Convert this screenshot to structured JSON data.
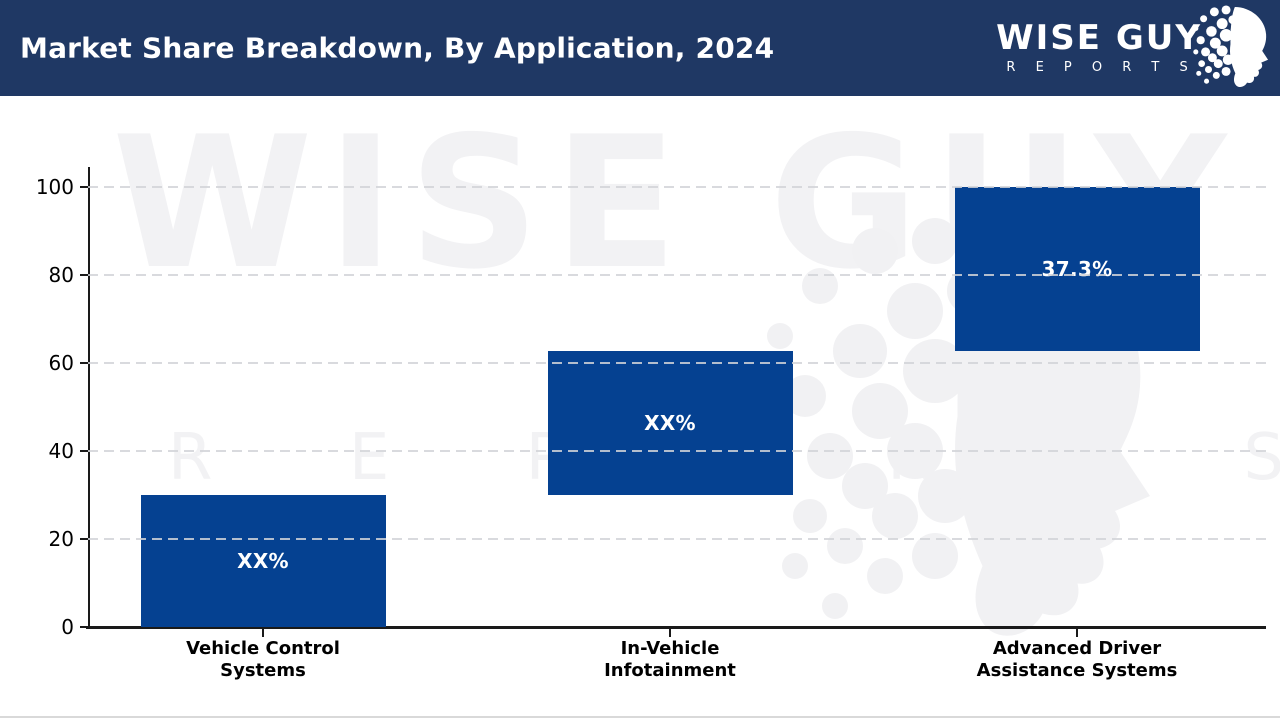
{
  "header": {
    "title": "Market Share Breakdown, By Application, 2024",
    "bg_color": "#1f3864",
    "brand": {
      "name_top": "WISE GUY",
      "name_bottom": "R E P O R T S"
    }
  },
  "watermark": {
    "line1": "WISE GUY",
    "line2": "R E P O R T S"
  },
  "chart_data": {
    "type": "bar",
    "subtype": "floating-segment-breakdown",
    "title": "Market Share Breakdown, By Application, 2024",
    "categories": [
      [
        "Vehicle Control",
        "Systems"
      ],
      [
        "In-Vehicle",
        "Infotainment"
      ],
      [
        "Advanced Driver",
        "Assistance Systems"
      ]
    ],
    "series": [
      {
        "name": "Vehicle Control Systems",
        "start": 0,
        "end": 30,
        "value": 30,
        "label": "XX%"
      },
      {
        "name": "In-Vehicle Infotainment",
        "start": 30,
        "end": 62.7,
        "value": 32.7,
        "label": "XX%"
      },
      {
        "name": "Advanced Driver Assistance Systems",
        "start": 62.7,
        "end": 100,
        "value": 37.3,
        "label": "37.3%"
      }
    ],
    "xlabel": "",
    "ylabel": "",
    "ylim": [
      0,
      100
    ],
    "yticks": [
      0,
      20,
      40,
      60,
      80,
      100
    ],
    "grid": "horizontal-dashed-over-bars",
    "legend": "none",
    "bar_color": "#054191",
    "bar_label_color": "#ffffff",
    "axis_color": "#1a1a1a",
    "gridline_color": "#d9d9d9"
  }
}
